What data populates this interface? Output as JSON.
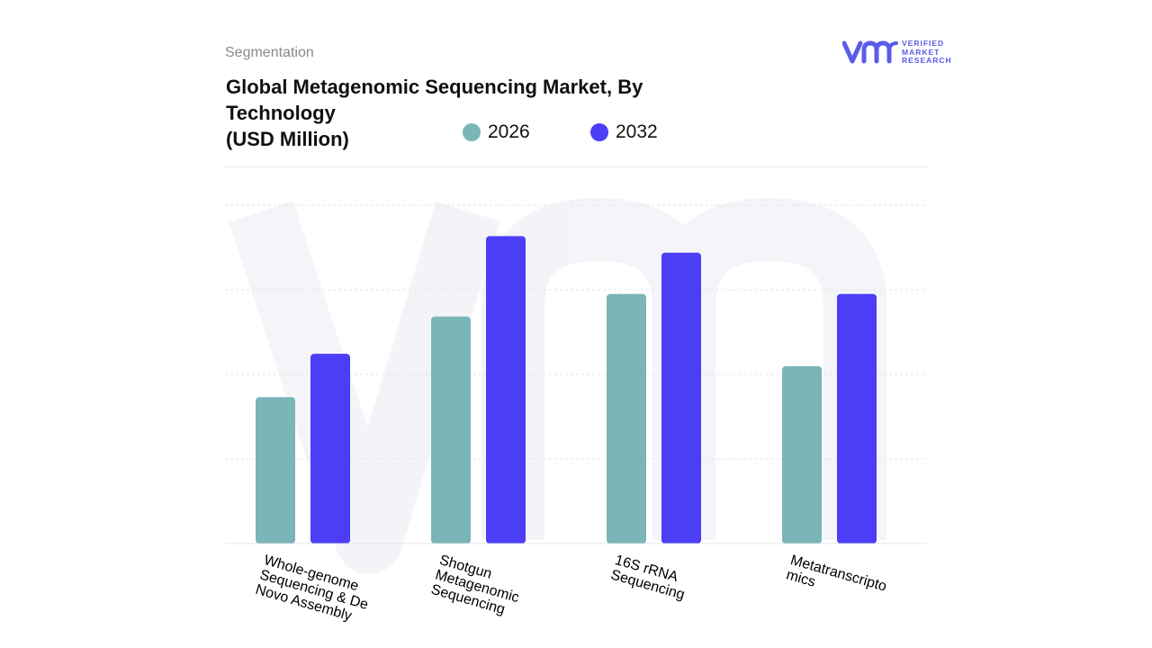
{
  "header": {
    "segment_label": "Segmentation",
    "title_lines": [
      "Global Metagenomic Sequencing Market, By",
      "Technology",
      "(USD Million)"
    ]
  },
  "logo": {
    "mark": "vmr",
    "text_lines": [
      "VERIFIED",
      "MARKET",
      "RESEARCH"
    ],
    "color": "#5a5ce8"
  },
  "chart_data": {
    "type": "bar",
    "title": "Global Metagenomic Sequencing Market, By Technology (USD Million)",
    "categories": [
      [
        "Whole-genome",
        "Sequencing & De",
        "Novo Assembly"
      ],
      [
        "Shotgun",
        "Metagenomic",
        "Sequencing"
      ],
      [
        "16S rRNA",
        "Sequencing"
      ],
      [
        "Metatranscripto",
        "mics"
      ]
    ],
    "series": [
      {
        "name": "2026",
        "color": "#7ab5b8",
        "values": [
          35.5,
          55.0,
          60.5,
          43.0
        ]
      },
      {
        "name": "2032",
        "color": "#4b3ef6",
        "values": [
          46.0,
          74.5,
          70.5,
          60.5
        ]
      }
    ],
    "ylim": [
      0,
      82
    ],
    "grid": true,
    "legend_position": "top",
    "watermark": "vmr"
  }
}
